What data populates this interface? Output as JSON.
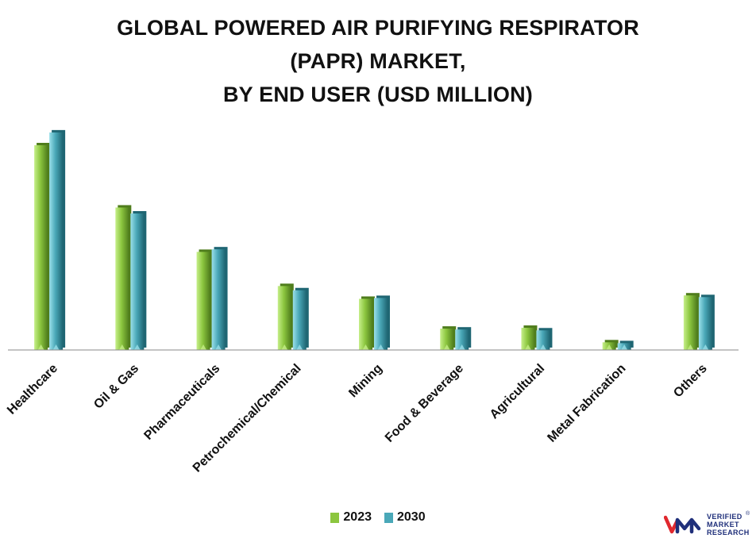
{
  "title_lines": [
    "GLOBAL POWERED AIR PURIFYING RESPIRATOR",
    "(PAPR) MARKET,",
    "BY END USER (USD MILLION)"
  ],
  "legend": [
    "2023",
    "2030"
  ],
  "colors": {
    "series_2023": "#8cc63f",
    "series_2030": "#4aa8b8",
    "axis": "#8a8a8a",
    "text": "#111111",
    "brand": "#1f2f7a",
    "brand_accent": "#e0282e"
  },
  "chart_data": {
    "type": "bar",
    "categories": [
      "Healthcare",
      "Oil & Gas",
      "Pharmaceuticals",
      "Petrochemical/Chemical",
      "Mining",
      "Food & Beverage",
      "Agricultural",
      "Metal Fabrication",
      "Others"
    ],
    "series": [
      {
        "name": "2023",
        "values": [
          240,
          167,
          115,
          75,
          60,
          25,
          26,
          9,
          64
        ]
      },
      {
        "name": "2030",
        "values": [
          255,
          160,
          118,
          70,
          61,
          24,
          23,
          8,
          62
        ]
      }
    ],
    "ylim": [
      0,
      280
    ],
    "grid": false,
    "legend_position": "bottom-center"
  },
  "logo": {
    "lines": [
      "VERIFIED",
      "MARKET",
      "RESEARCH"
    ],
    "registered": "®"
  }
}
